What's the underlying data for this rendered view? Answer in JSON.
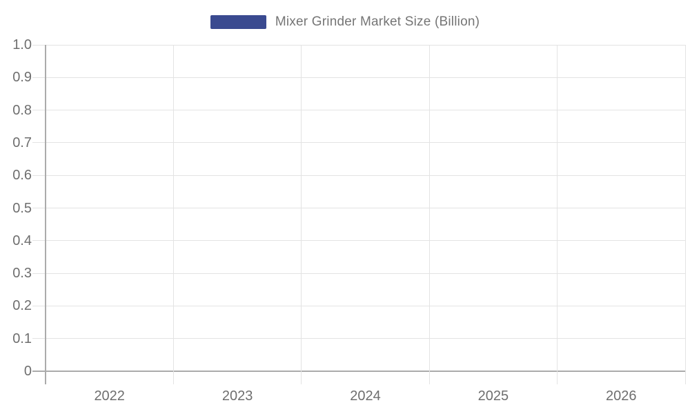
{
  "legend": {
    "label": "Mixer Grinder Market Size (Billion)",
    "swatch_color": "#3A4A90"
  },
  "chart_data": {
    "type": "bar",
    "title": "Mixer Grinder Market Size (Billion)",
    "categories": [
      "2022",
      "2023",
      "2024",
      "2025",
      "2026"
    ],
    "series": [
      {
        "name": "Mixer Grinder Market Size (Billion)",
        "values": [
          null,
          null,
          null,
          null,
          null
        ]
      }
    ],
    "xlabel": "",
    "ylabel": "",
    "ylim": [
      0,
      1.0
    ],
    "ytick_labels": [
      "0",
      "0.1",
      "0.2",
      "0.3",
      "0.4",
      "0.5",
      "0.6",
      "0.7",
      "0.8",
      "0.9",
      "1.0"
    ],
    "grid": true,
    "legend_position": "top-center",
    "bars_rendered": false
  },
  "colors": {
    "series": "#3A4A90",
    "gridline": "#e3e3e3",
    "axis_line": "#ababab",
    "label_text": "#6e6e6e",
    "legend_text": "#757575",
    "background": "#ffffff"
  }
}
